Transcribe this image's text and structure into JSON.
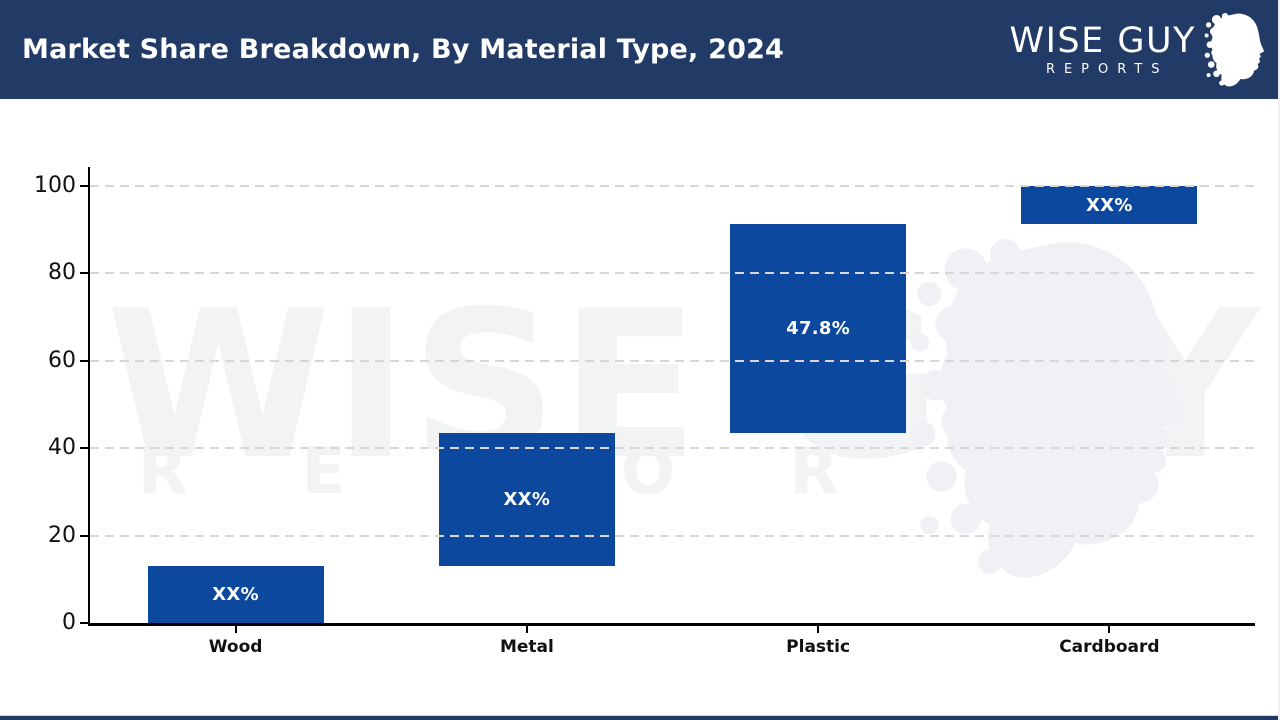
{
  "header": {
    "title": "Market Share Breakdown, By Material Type, 2024",
    "logo_line1": "WISE GUY",
    "logo_line2": "REPORTS"
  },
  "watermark": {
    "big_text": "WISE GUY",
    "sub_text": "R E P O R T S"
  },
  "chart_data": {
    "type": "bar",
    "variant": "waterfall",
    "title": "Market Share Breakdown, By Material Type, 2024",
    "categories": [
      "Wood",
      "Metal",
      "Plastic",
      "Cardboard"
    ],
    "values": [
      13,
      30.4,
      47.8,
      8.8
    ],
    "bar_labels": [
      "XX%",
      "XX%",
      "47.8%",
      "XX%"
    ],
    "segments": [
      {
        "category": "Wood",
        "start": 0,
        "end": 13,
        "label": "XX%"
      },
      {
        "category": "Metal",
        "start": 13,
        "end": 43.4,
        "label": "XX%"
      },
      {
        "category": "Plastic",
        "start": 43.4,
        "end": 91.2,
        "label": "47.8%"
      },
      {
        "category": "Cardboard",
        "start": 91.2,
        "end": 100,
        "label": "XX%"
      }
    ],
    "xlabel": "",
    "ylabel": "",
    "yticks": [
      0,
      20,
      40,
      60,
      80,
      100
    ],
    "ylim": [
      0,
      104.3
    ],
    "grid": "horizontal-dashed",
    "legend": "none",
    "bar_color": "#0b489e"
  },
  "colors": {
    "header_bg": "#223a66",
    "footer_bg": "#223a66",
    "bar_blue": "#0b489e",
    "gridline": "#d7d7d7",
    "axis": "#000000",
    "watermark_gray": "#f2f3f5",
    "title_text": "#ffffff",
    "bar_label_text": "#ffffff"
  }
}
